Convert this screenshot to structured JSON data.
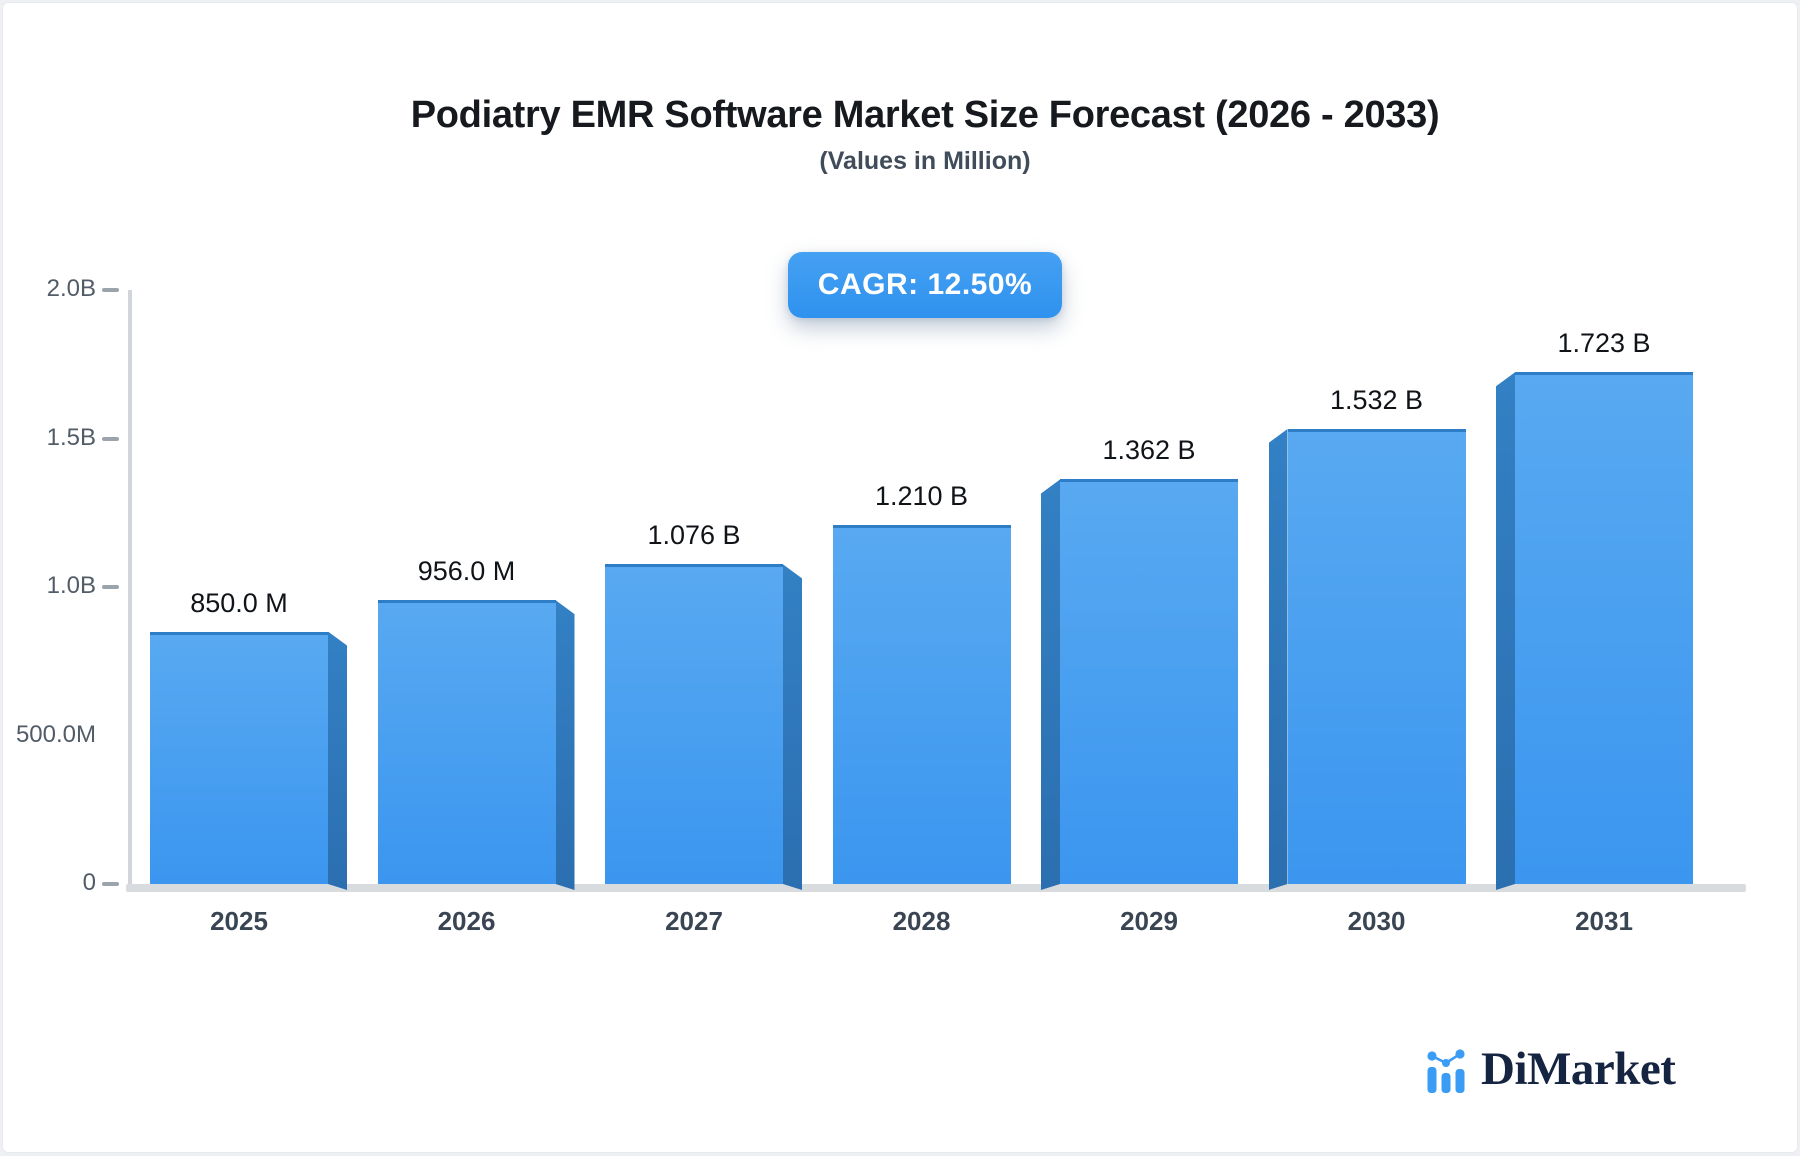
{
  "page": {
    "background_color": "#eef0f3",
    "card_color": "#ffffff"
  },
  "header": {
    "title": "Podiatry EMR Software Market Size Forecast (2026 - 2033)",
    "subtitle": "(Values in Million)",
    "cagr_badge": "CAGR: 12.50%"
  },
  "chart_data": {
    "type": "bar",
    "title": "Podiatry EMR Software Market Size Forecast (2026 - 2033)",
    "subtitle": "(Values in Million)",
    "cagr_text": "CAGR: 12.50%",
    "cagr_percent": 12.5,
    "categories": [
      "2025",
      "2026",
      "2027",
      "2028",
      "2029",
      "2030",
      "2031"
    ],
    "values_billions": [
      0.85,
      0.956,
      1.076,
      1.21,
      1.362,
      1.532,
      1.723
    ],
    "value_labels": [
      "850.0 M",
      "956.0 M",
      "1.076 B",
      "1.210 B",
      "1.362 B",
      "1.532 B",
      "1.723 B"
    ],
    "ylim": [
      0,
      2.0
    ],
    "y_ticks": [
      {
        "label": "2.0B",
        "value": 2.0,
        "dash": true
      },
      {
        "label": "1.5B",
        "value": 1.5,
        "dash": true
      },
      {
        "label": "1.0B",
        "value": 1.0,
        "dash": true
      },
      {
        "label": "500.0M",
        "value": 0.5,
        "dash": false
      },
      {
        "label": "0",
        "value": 0.0,
        "dash": true
      }
    ],
    "grid": false,
    "legend": null,
    "colors": {
      "bar_face_top": "#58a9f1",
      "bar_face_bottom": "#3b96ef",
      "bar_side": "#2e74b6",
      "bar_top_edge": "#2d7dc7",
      "badge": "#3598f0",
      "axis": "#d2d6da",
      "baseline": "#d9dcdf",
      "tick_text": "#525c68",
      "value_text": "#101418",
      "category_text": "#3a4553"
    }
  },
  "watermark": {
    "text": "DiMarket",
    "icon": "mini-bar-chart-icon",
    "icon_color": "#3b9cf5",
    "text_color": "#152440"
  }
}
